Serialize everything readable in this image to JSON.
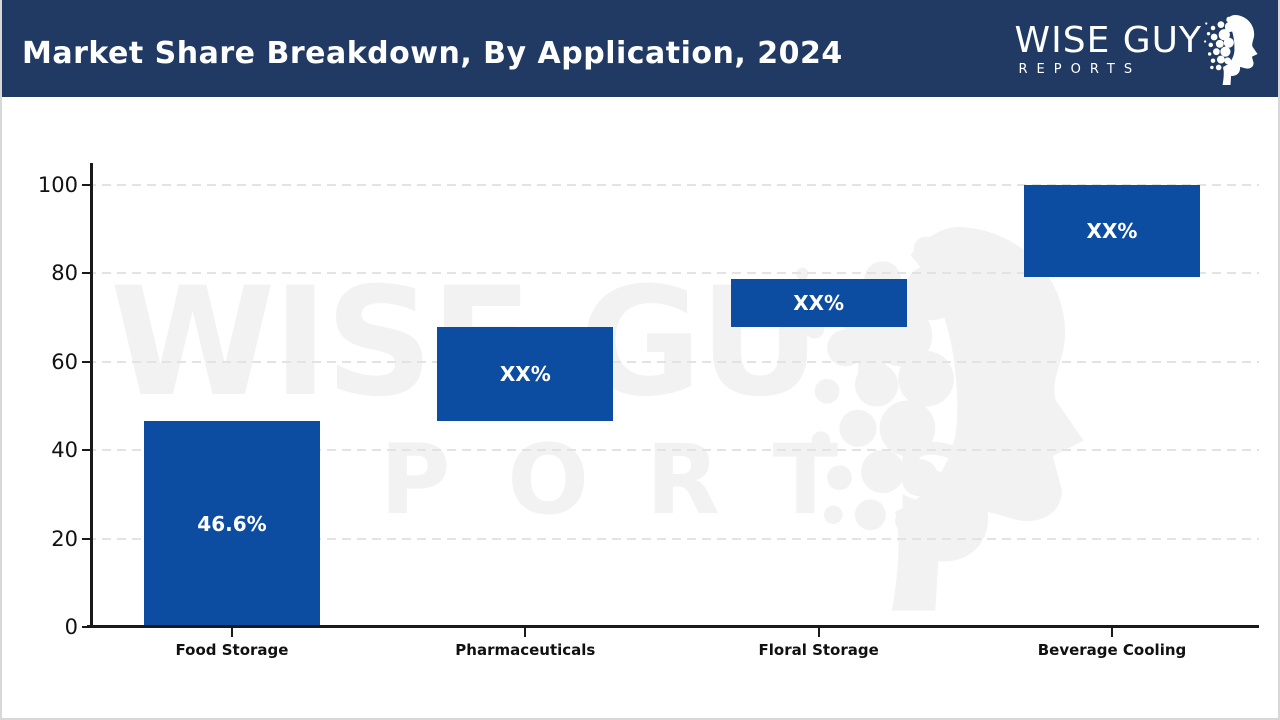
{
  "header": {
    "title": "Market Share Breakdown, By Application, 2024",
    "logo": {
      "line1": "WISE GUY",
      "line2": "REPORTS"
    }
  },
  "watermark": {
    "line1": "WISE GUY",
    "line2": "PORTS"
  },
  "theme": {
    "header_bg": "#213a63",
    "bar_color": "#0d4da1",
    "bar_label_color": "#ffffff",
    "axis_color": "#1a1a1a",
    "grid_color": "#e3e3e3",
    "watermark_color": "#f2f2f2"
  },
  "chart_data": {
    "type": "bar",
    "subtype": "waterfall",
    "title": "Market Share Breakdown, By Application, 2024",
    "categories": [
      "Food Storage",
      "Pharmaceuticals",
      "Floral Storage",
      "Beverage Cooling"
    ],
    "segments": [
      {
        "category": "Food Storage",
        "start": 0,
        "end": 46.6,
        "label": "46.6%"
      },
      {
        "category": "Pharmaceuticals",
        "start": 46.6,
        "end": 67.8,
        "label": "XX%"
      },
      {
        "category": "Floral Storage",
        "start": 67.8,
        "end": 78.7,
        "label": "XX%"
      },
      {
        "category": "Beverage Cooling",
        "start": 79.1,
        "end": 100,
        "label": "XX%"
      }
    ],
    "xlabel": "",
    "ylabel": "",
    "ylim": [
      0,
      100
    ],
    "yticks": [
      0,
      20,
      40,
      60,
      80,
      100
    ],
    "grid": "horizontal dashed",
    "legend": "none"
  }
}
